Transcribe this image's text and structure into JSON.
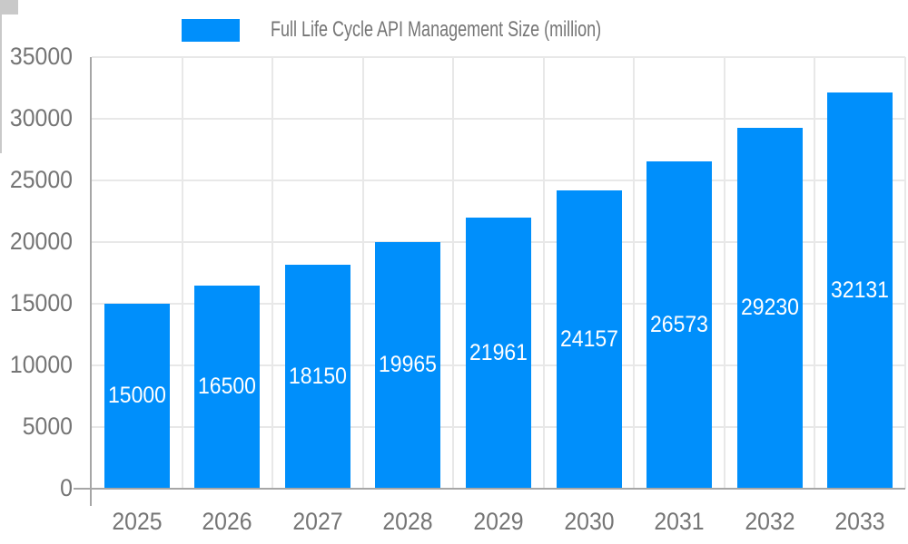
{
  "legend": {
    "items": [
      {
        "label": "Full Life Cycle API Management Size (million)",
        "color": "#008FFB"
      }
    ]
  },
  "chart_data": {
    "type": "bar",
    "title": "Full Life Cycle API Management Size (million)",
    "categories": [
      "2025",
      "2026",
      "2027",
      "2028",
      "2029",
      "2030",
      "2031",
      "2032",
      "2033"
    ],
    "series": [
      {
        "name": "Full Life Cycle API Management Size (million)",
        "values": [
          15000,
          16500,
          18150,
          19965,
          21961,
          24157,
          26573,
          29230,
          32131
        ]
      }
    ],
    "value_labels": [
      "15000",
      "16500",
      "18150",
      "19965",
      "21961",
      "24157",
      "26573",
      "29230",
      "32131"
    ],
    "xlabel": "",
    "ylabel": "",
    "ylim": [
      0,
      35000
    ],
    "yticks": [
      0,
      5000,
      10000,
      15000,
      20000,
      25000,
      30000,
      35000
    ],
    "ytick_labels": [
      "0",
      "5000",
      "10000",
      "15000",
      "20000",
      "25000",
      "30000",
      "35000"
    ],
    "grid": true,
    "legend_position": "top",
    "colors": {
      "bar": "#008FFB",
      "value_label": "#ffffff",
      "grid": "#e8e8e8",
      "axis_line": "#a6a6a6",
      "tick": "#c9c9c9",
      "axis_text": "#757575"
    }
  }
}
